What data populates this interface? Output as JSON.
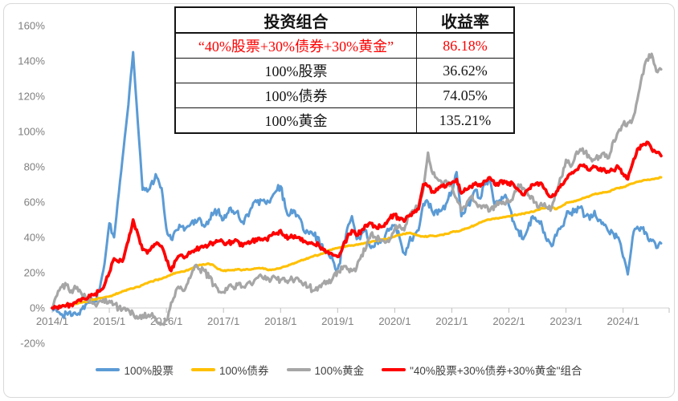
{
  "table": {
    "headers": [
      "投资组合",
      "收益率"
    ],
    "highlight_color": "#fe0000",
    "rows": [
      {
        "portfolio": "“40%股票+30%债券+30%黄金”",
        "value": "86.18%",
        "highlight": true
      },
      {
        "portfolio": "100%股票",
        "value": "36.62%",
        "highlight": false
      },
      {
        "portfolio": "100%债券",
        "value": "74.05%",
        "highlight": false
      },
      {
        "portfolio": "100%黄金",
        "value": "135.21%",
        "highlight": false
      }
    ]
  },
  "legend": {
    "items": [
      {
        "label": "100%股票",
        "color": "#5B9BD5"
      },
      {
        "label": "100%债券",
        "color": "#FFC000"
      },
      {
        "label": "100%黄金",
        "color": "#A6A6A6"
      },
      {
        "label": "\"40%股票+30%债券+30%黄金\"组合",
        "color": "#FE0000"
      }
    ]
  },
  "chart_data": {
    "type": "line",
    "title": "",
    "xlabel": "",
    "ylabel": "",
    "grid": false,
    "legend_position": "bottom",
    "x_unit": "month",
    "x_range": [
      "2014/1",
      "2024/9"
    ],
    "ylim": [
      -20,
      160
    ],
    "y_ticks": [
      {
        "v": 160,
        "label": "160%"
      },
      {
        "v": 140,
        "label": "140%"
      },
      {
        "v": 120,
        "label": "120%"
      },
      {
        "v": 100,
        "label": "100%"
      },
      {
        "v": 80,
        "label": "80%"
      },
      {
        "v": 60,
        "label": "60%"
      },
      {
        "v": 40,
        "label": "40%"
      },
      {
        "v": 20,
        "label": "20%"
      },
      {
        "v": 0,
        "label": "0%"
      },
      {
        "v": -20,
        "label": "-20%"
      }
    ],
    "x_ticks": [
      {
        "m": 0,
        "label": "2014/1"
      },
      {
        "m": 12,
        "label": "2015/1"
      },
      {
        "m": 24,
        "label": "2016/1"
      },
      {
        "m": 36,
        "label": "2017/1"
      },
      {
        "m": 48,
        "label": "2018/1"
      },
      {
        "m": 60,
        "label": "2019/1"
      },
      {
        "m": 72,
        "label": "2020/1"
      },
      {
        "m": 84,
        "label": "2021/1"
      },
      {
        "m": 96,
        "label": "2022/1"
      },
      {
        "m": 108,
        "label": "2023/1"
      },
      {
        "m": 120,
        "label": "2024/1"
      }
    ],
    "series": [
      {
        "name": "100%股票",
        "color": "#5B9BD5",
        "final_value": 36.62,
        "values": [
          0,
          -2,
          -3.5,
          -3,
          -4.5,
          -3.5,
          -1,
          2,
          4.5,
          4,
          11,
          25,
          48,
          40,
          65,
          90,
          115,
          145,
          105,
          67,
          66,
          72,
          74,
          68,
          45,
          39,
          44,
          46,
          45,
          47,
          50,
          51,
          46,
          50,
          54,
          56,
          50,
          54,
          55,
          55,
          49,
          53,
          57,
          60,
          61,
          59,
          62,
          66,
          69,
          57,
          53,
          55,
          51,
          43,
          42,
          41,
          40,
          33,
          31,
          27,
          22,
          33,
          45,
          52,
          39,
          42,
          44,
          34,
          38,
          37,
          41,
          45,
          47,
          40,
          31,
          37,
          41,
          44,
          59,
          60,
          54,
          53,
          56,
          60,
          66,
          77,
          52,
          58,
          61,
          67,
          62,
          70,
          73,
          58,
          61,
          63,
          58,
          49,
          44,
          39,
          45,
          52,
          49,
          46,
          38,
          35,
          41,
          46,
          52,
          54,
          56,
          57,
          52,
          50,
          55,
          50,
          47,
          43,
          42,
          40,
          29,
          19,
          40,
          46,
          45,
          42,
          38,
          34,
          36.62
        ]
      },
      {
        "name": "100%债券",
        "color": "#FFC000",
        "final_value": 74.05,
        "values": [
          0,
          0.5,
          1,
          1.5,
          2,
          2.5,
          3,
          3.5,
          4.5,
          5,
          5.5,
          6,
          6.5,
          7.5,
          8.5,
          9.5,
          10.5,
          11,
          12,
          13,
          14,
          15,
          16,
          16.5,
          17.5,
          19,
          20,
          20.5,
          21,
          22,
          23.5,
          24.5,
          24.5,
          25,
          24,
          22,
          21,
          21.5,
          21.5,
          22,
          21.5,
          22,
          22,
          22.5,
          22.5,
          22,
          21.5,
          22,
          22.5,
          23.5,
          24.5,
          25.5,
          26.5,
          27.5,
          28.5,
          29.5,
          30,
          31,
          32.5,
          33.5,
          34,
          34.5,
          35,
          35.5,
          36,
          36.5,
          37,
          37.5,
          38,
          38.5,
          39,
          39.5,
          40.5,
          41.5,
          42,
          42.5,
          42,
          41,
          40.5,
          40.5,
          41,
          41,
          41.5,
          42,
          43,
          43.5,
          44,
          45,
          46,
          47,
          48.5,
          49.5,
          50,
          50.5,
          51,
          51.5,
          52,
          52.5,
          53,
          53.5,
          54,
          54.5,
          55.5,
          56.5,
          57,
          57,
          56,
          57.5,
          59.5,
          60,
          60.5,
          61.5,
          62.5,
          63.5,
          64.5,
          65,
          65.5,
          66,
          67,
          68,
          68.5,
          69.5,
          70.5,
          71.5,
          72,
          72.5,
          73,
          73.5,
          74.05
        ]
      },
      {
        "name": "100%黄金",
        "color": "#A6A6A6",
        "final_value": 135.21,
        "values": [
          0,
          7,
          12,
          13,
          10,
          11,
          9,
          6,
          3,
          2,
          4,
          3,
          4,
          2,
          0,
          0,
          -1,
          -3,
          -6,
          -4,
          -5,
          -3,
          -8,
          -9,
          -7,
          3,
          10,
          12,
          11,
          17,
          24,
          22,
          21,
          17,
          13,
          9,
          9,
          12,
          12,
          13,
          12,
          14,
          13,
          17,
          18,
          16,
          16,
          17,
          16,
          15,
          16,
          16,
          15,
          14,
          12,
          10,
          12,
          14,
          14,
          17,
          21,
          22,
          22,
          21,
          23,
          30,
          34,
          42,
          40,
          38,
          37,
          39,
          45,
          47,
          44,
          52,
          55,
          58,
          67,
          88,
          76,
          73,
          70,
          71,
          70,
          62,
          55,
          58,
          63,
          60,
          58,
          57,
          55,
          58,
          60,
          59,
          60,
          64,
          70,
          68,
          64,
          63,
          57,
          58,
          57,
          57,
          66,
          74,
          84,
          80,
          87,
          90,
          88,
          85,
          84,
          86,
          88,
          85,
          95,
          100,
          104,
          105,
          107,
          118,
          132,
          141,
          144,
          134,
          135.21
        ]
      },
      {
        "name": "\"40%股票+30%债券+30%黄金\"组合",
        "color": "#FE0000",
        "final_value": 86.18,
        "values": [
          0,
          0.5,
          1,
          1.5,
          2,
          3,
          4,
          5,
          6.5,
          8,
          9.5,
          13,
          20,
          28,
          26,
          28,
          38,
          50,
          42,
          33,
          31,
          35,
          37,
          35,
          27,
          21,
          27,
          30,
          29,
          31,
          33,
          34,
          35,
          36,
          37,
          38,
          37,
          37,
          37,
          38,
          35,
          37,
          38,
          38,
          39,
          39,
          41,
          42,
          44,
          40,
          40,
          41,
          40,
          38,
          37,
          36,
          36,
          33,
          32,
          30,
          29,
          34,
          40,
          44,
          41,
          44,
          47,
          48,
          46,
          46,
          48,
          51,
          53,
          50,
          49,
          52,
          54,
          56,
          70,
          69,
          66,
          67,
          69,
          70,
          71,
          73,
          65,
          67,
          69,
          71,
          69,
          72,
          74,
          70,
          71,
          72,
          71,
          70,
          67,
          64,
          67,
          70,
          71,
          70,
          65,
          63,
          66,
          70,
          73,
          76,
          78,
          81,
          80,
          78,
          80,
          78,
          79,
          77,
          78,
          80,
          76,
          73,
          82,
          90,
          92,
          94,
          90,
          88,
          86.18
        ]
      }
    ]
  }
}
